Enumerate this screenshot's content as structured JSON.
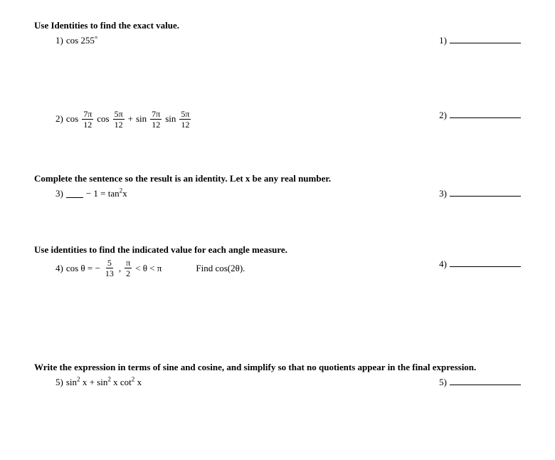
{
  "section1": {
    "heading": "Use Identities to find the exact value.",
    "problems": [
      {
        "num": "1)",
        "expr_parts": [
          "cos 255",
          "°"
        ],
        "answer_num": "1)"
      },
      {
        "num": "2)",
        "cos_label": "cos",
        "plus": "+",
        "sin_label": "sin",
        "frac1_num": "7π",
        "frac1_den": "12",
        "frac2_num": "5π",
        "frac2_den": "12",
        "frac3_num": "7π",
        "frac3_den": "12",
        "frac4_num": "5π",
        "frac4_den": "12",
        "answer_num": "2)"
      }
    ]
  },
  "section2": {
    "heading": "Complete the sentence so the result is an identity. Let x be any real number.",
    "problem": {
      "num": "3)",
      "after_blank": " − 1 = tan",
      "sup": "2",
      "after_sup": "x",
      "answer_num": "3)"
    }
  },
  "section3": {
    "heading": "Use identities to find the indicated value for each angle measure.",
    "problem": {
      "num": "4)",
      "before_frac": "cos θ = −",
      "frac1_num": "5",
      "frac1_den": "13",
      "comma": ",  ",
      "frac2_num": "π",
      "frac2_den": "2",
      "rel": " < θ < π",
      "find": "Find cos(2θ).",
      "answer_num": "4)"
    }
  },
  "section4": {
    "heading": "Write the expression in terms of sine and cosine, and simplify so that no quotients appear in the final expression.",
    "problem": {
      "num": "5)",
      "t1": "sin",
      "s1": "2",
      "t2": " x + sin",
      "s2": "2",
      "t3": " x cot",
      "s3": "2",
      "t4": " x",
      "answer_num": "5)"
    }
  }
}
